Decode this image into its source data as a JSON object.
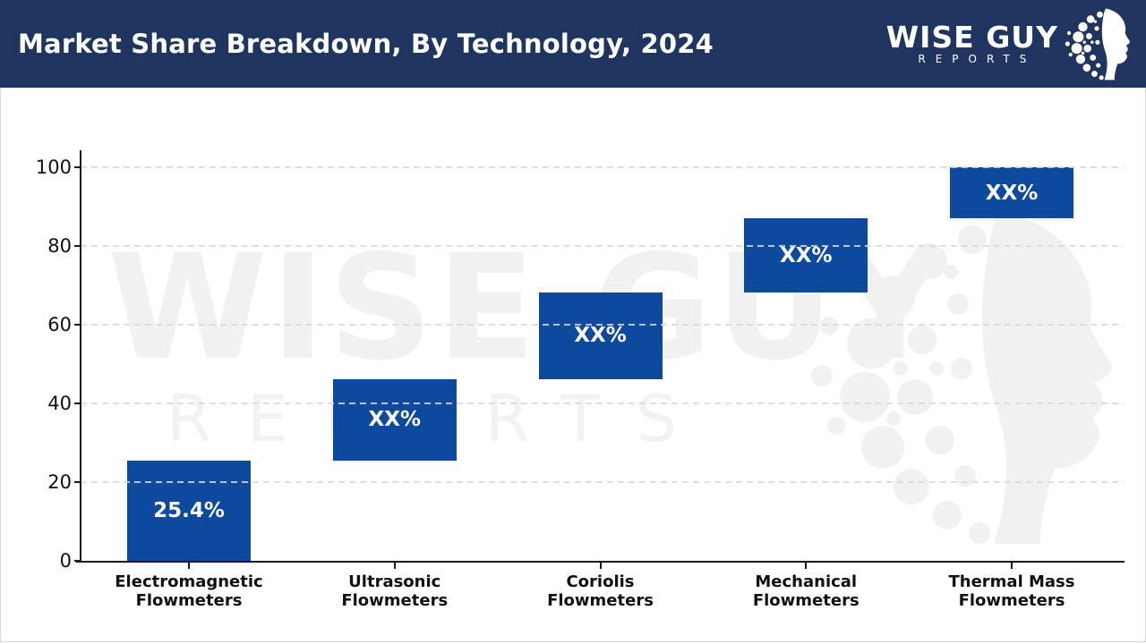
{
  "header": {
    "title": "Market Share Breakdown, By Technology, 2024",
    "logo": {
      "line1": "WISE GUY",
      "line2": "REPORTS"
    }
  },
  "watermark": {
    "line1": "WISE GUY",
    "line2": "REPORTS"
  },
  "colors": {
    "header_bg": "#1f3560",
    "bar": "#0d4a9d",
    "bar_label": "#ffffff",
    "grid": "#d9d9d9",
    "axis": "#1a1a1a",
    "watermark": "#f1f1f1"
  },
  "chart_data": {
    "type": "bar",
    "subtype": "waterfall (floating stacked-step bars)",
    "title": "Market Share Breakdown, By Technology, 2024",
    "xlabel": "",
    "ylabel": "",
    "ylim": [
      0,
      104
    ],
    "yticks": [
      0,
      20,
      40,
      60,
      80,
      100
    ],
    "grid": "horizontal dashed, light gray",
    "legend": "none",
    "categories": [
      "Electromagnetic Flowmeters",
      "Ultrasonic Flowmeters",
      "Coriolis Flowmeters",
      "Mechanical Flowmeters",
      "Thermal Mass Flowmeters"
    ],
    "category_label_lines": [
      [
        "Electromagnetic",
        "Flowmeters"
      ],
      [
        "Ultrasonic",
        "Flowmeters"
      ],
      [
        "Coriolis",
        "Flowmeters"
      ],
      [
        "Mechanical",
        "Flowmeters"
      ],
      [
        "Thermal Mass",
        "Flowmeters"
      ]
    ],
    "bars": [
      {
        "category": "Electromagnetic Flowmeters",
        "start": 0,
        "end": 25.4,
        "label": "25.4%"
      },
      {
        "category": "Ultrasonic Flowmeters",
        "start": 25.4,
        "end": 46.2,
        "label": "XX%"
      },
      {
        "category": "Coriolis Flowmeters",
        "start": 46.2,
        "end": 68.2,
        "label": "XX%"
      },
      {
        "category": "Mechanical Flowmeters",
        "start": 68.2,
        "end": 87.0,
        "label": "XX%"
      },
      {
        "category": "Thermal Mass Flowmeters",
        "start": 87.0,
        "end": 100.0,
        "label": "XX%"
      }
    ],
    "note": "Only the first segment value is shown; remaining segment labels are masked as XX% in the image"
  }
}
